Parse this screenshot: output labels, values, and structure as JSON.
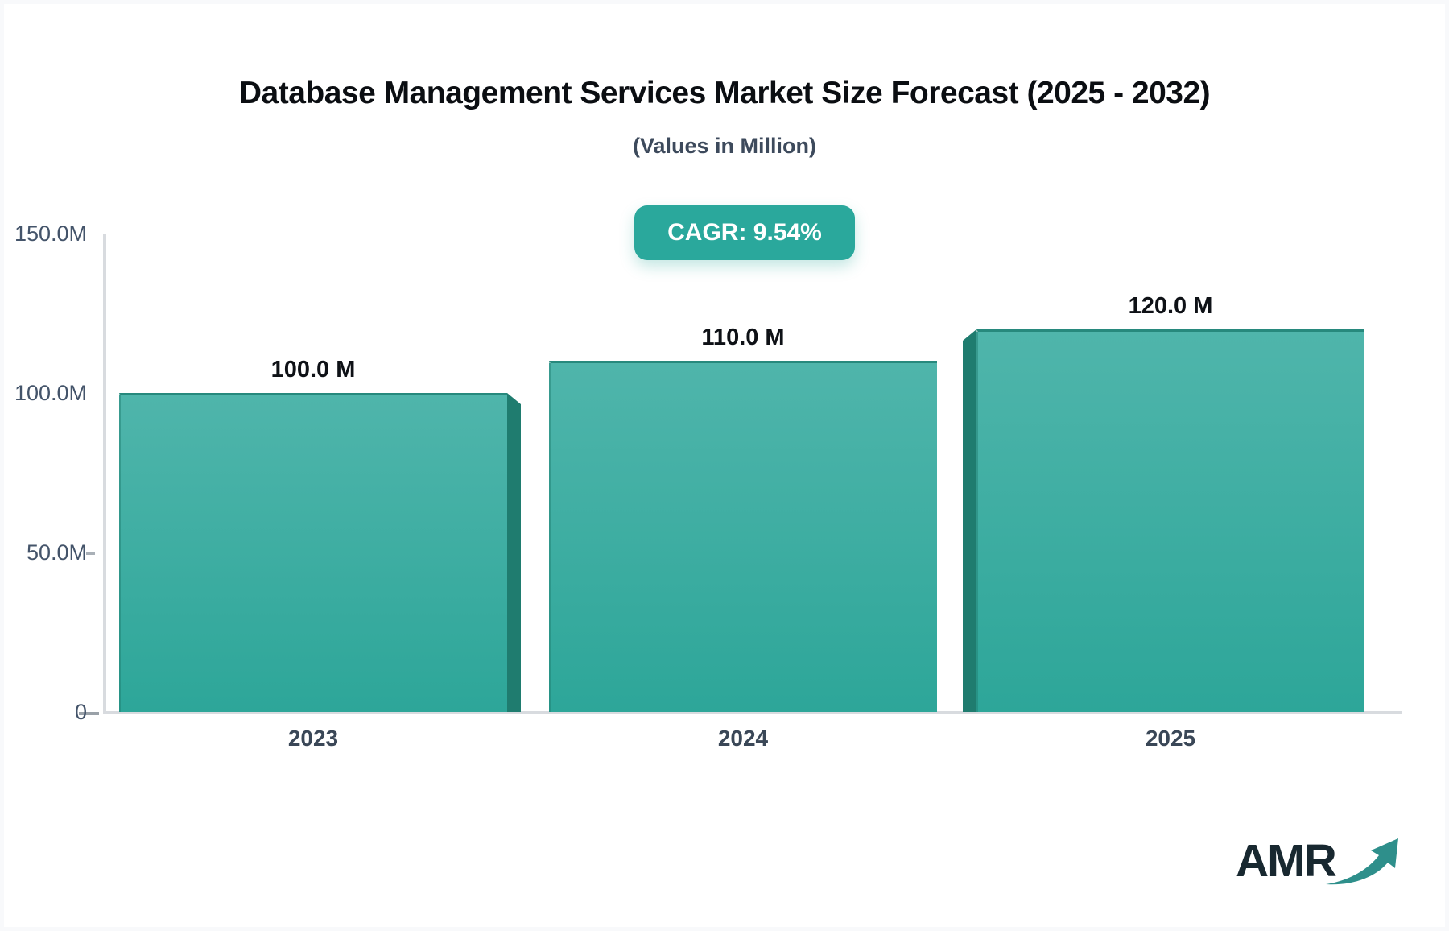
{
  "header": {
    "title": "Database Management Services Market Size Forecast (2025 - 2032)",
    "subtitle": "(Values in Million)",
    "cagr_badge": "CAGR: 9.54%"
  },
  "chart_data": {
    "type": "bar",
    "title": "Database Management Services Market Size Forecast (2025 - 2032)",
    "subtitle": "(Values in Million)",
    "unit": "Million",
    "categories": [
      "2023",
      "2024",
      "2025"
    ],
    "values": [
      100.0,
      110.0,
      120.0
    ],
    "value_labels": [
      "100.0 M",
      "110.0 M",
      "120.0 M"
    ],
    "ylim": [
      0,
      150
    ],
    "y_ticks": [
      {
        "label": "150.0M",
        "value": 150,
        "tick": "none"
      },
      {
        "label": "100.0M",
        "value": 100,
        "tick": "none"
      },
      {
        "label": "50.0M",
        "value": 50,
        "tick": "short"
      },
      {
        "label": "0",
        "value": 0,
        "tick": "long"
      }
    ],
    "grid": false,
    "legend": "none",
    "annotation": "CAGR: 9.54%"
  },
  "footer": {
    "logo_text": "AMR"
  },
  "colors": {
    "accent": "#2aa89c",
    "bar_gradient_top": "#4fb5ab",
    "bar_gradient_bottom": "#2da699",
    "bar_top_edge": "#27897d",
    "bar_side_panel": "#1f7c6f",
    "axis_line": "#d8dbdf",
    "title_ink": "#0b0e12",
    "subtitle_ink": "#3d4a5c",
    "logo_arrow": "#2e8f8b"
  }
}
